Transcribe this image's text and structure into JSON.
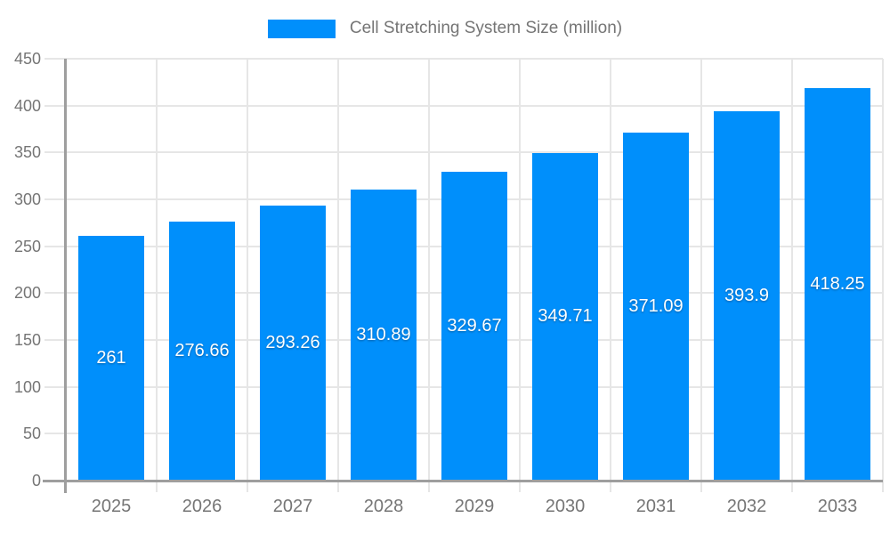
{
  "chart_data": {
    "type": "bar",
    "title": "Cell Stretching System Size (million)",
    "categories": [
      "2025",
      "2026",
      "2027",
      "2028",
      "2029",
      "2030",
      "2031",
      "2032",
      "2033"
    ],
    "values": [
      261,
      276.66,
      293.26,
      310.89,
      329.67,
      349.71,
      371.09,
      393.9,
      418.25
    ],
    "value_labels": [
      "261",
      "276.66",
      "293.26",
      "310.89",
      "329.67",
      "349.71",
      "371.09",
      "393.9",
      "418.25"
    ],
    "ylim": [
      0,
      450
    ],
    "yticks": [
      0,
      50,
      100,
      150,
      200,
      250,
      300,
      350,
      400,
      450
    ],
    "grid": true,
    "legend_position": "top",
    "colors": {
      "bar": "#008FFB",
      "grid": "#e6e6e6",
      "axis_line": "#9e9e9e",
      "axis_text": "#757575",
      "data_label": "#ffffff",
      "background": "#ffffff"
    }
  }
}
